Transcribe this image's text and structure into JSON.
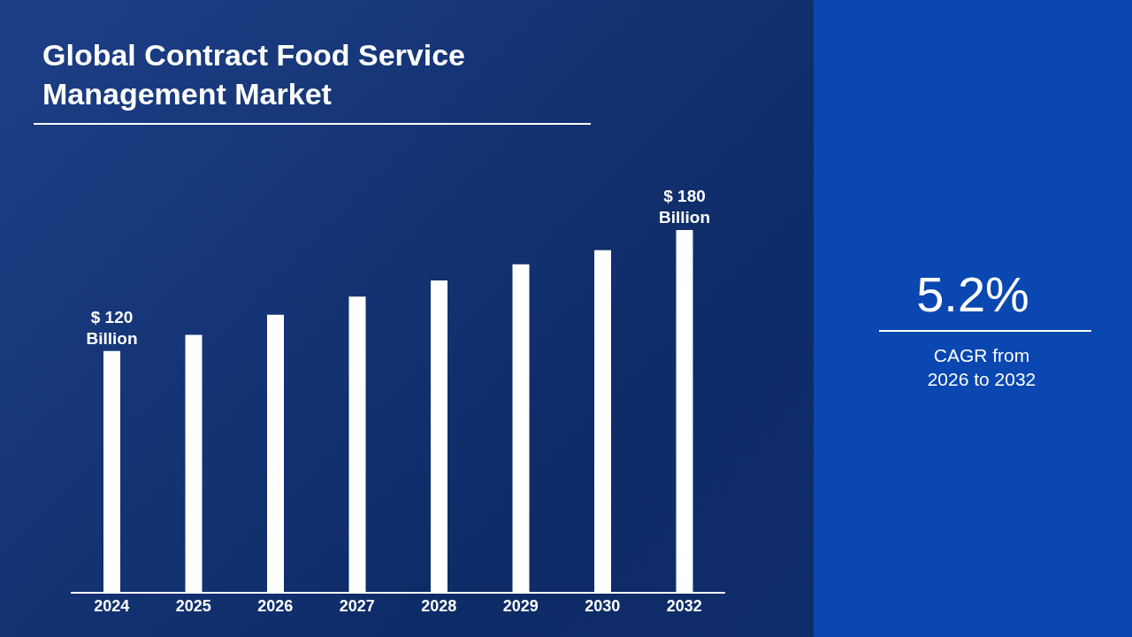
{
  "chart_data": {
    "type": "bar",
    "title": "Global Contract Food Service Management Market",
    "categories": [
      "2024",
      "2025",
      "2026",
      "2027",
      "2028",
      "2029",
      "2030",
      "2032"
    ],
    "values": [
      120,
      128,
      138,
      147,
      155,
      163,
      170,
      180
    ],
    "color": "#ffffff",
    "value_labels": [
      "$ 120 Billion",
      null,
      null,
      null,
      null,
      null,
      null,
      "$ 180 Billion"
    ],
    "annotations": [
      "5.2%",
      "CAGR from 2026 to 2032"
    ]
  }
}
